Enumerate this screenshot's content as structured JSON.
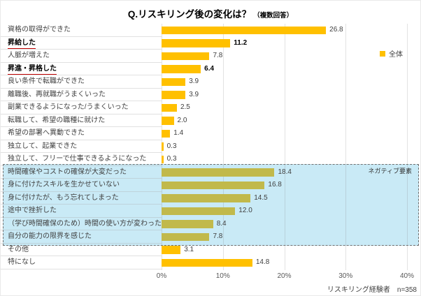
{
  "colors": {
    "bar": "#FFC000",
    "negative_bar": "#C1B94B",
    "highlight": "#C9EAF6",
    "accent_red": "#C00000",
    "gridline": "#D9D9D9"
  },
  "chart_data": {
    "type": "bar",
    "orientation": "horizontal",
    "title": "Q.リスキリング後の変化は？",
    "subtitle": "（複数回答）",
    "legend": [
      {
        "label": "全体",
        "color": "#FFC000"
      }
    ],
    "legend_position": "right",
    "xlim": [
      0,
      40
    ],
    "x_ticks": [
      "0%",
      "10%",
      "20%",
      "30%",
      "40%"
    ],
    "grid": true,
    "negative_label": "ネガティブ要素",
    "footnote": "リスキリング経験者　n=358",
    "items": [
      {
        "label": "資格の取得ができた",
        "value": 26.8
      },
      {
        "label": "昇給した",
        "value": 11.2,
        "emphasis": true
      },
      {
        "label": "人脈が増えた",
        "value": 7.8
      },
      {
        "label": "昇進・昇格した",
        "value": 6.4,
        "emphasis": true
      },
      {
        "label": "良い条件で転職ができた",
        "value": 3.9
      },
      {
        "label": "離職後、再就職がうまくいった",
        "value": 3.9
      },
      {
        "label": "副業できるようになった/うまくいった",
        "value": 2.5
      },
      {
        "label": "転職して、希望の職種に就けた",
        "value": 2.0
      },
      {
        "label": "希望の部署へ異動できた",
        "value": 1.4
      },
      {
        "label": "独立して、起業できた",
        "value": 0.3
      },
      {
        "label": "独立して、フリーで仕事できるようになった",
        "value": 0.3
      },
      {
        "label": "時間確保やコストの確保が大変だった",
        "value": 18.4,
        "negative": true
      },
      {
        "label": "身に付けたスキルを生かせていない",
        "value": 16.8,
        "negative": true
      },
      {
        "label": "身に付けたが、もう忘れてしまった",
        "value": 14.5,
        "negative": true
      },
      {
        "label": "途中で挫折した",
        "value": 12.0,
        "negative": true
      },
      {
        "label": "（学び時間確保のため）時間の使い方が変わった",
        "value": 8.4,
        "negative": true
      },
      {
        "label": "自分の能力の限界を感じた",
        "value": 7.8,
        "negative": true
      },
      {
        "label": "その他",
        "value": 3.1
      },
      {
        "label": "特になし",
        "value": 14.8
      }
    ]
  }
}
